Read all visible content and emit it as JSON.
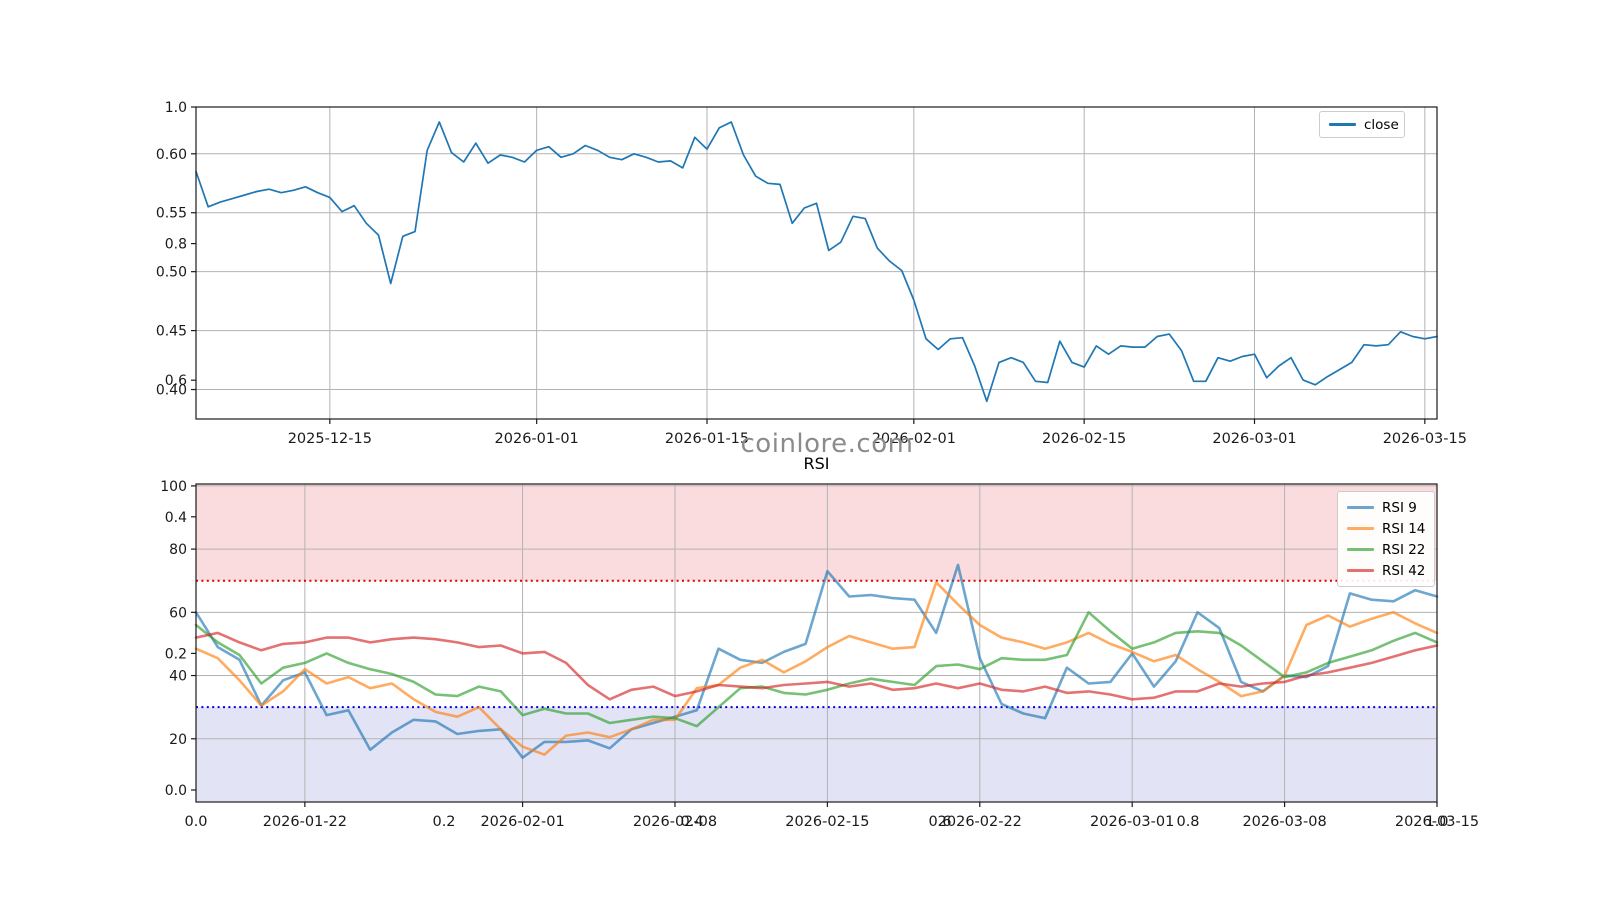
{
  "watermark": "coinlore.com",
  "colors": {
    "close_line": "#1f77b4",
    "rsi9": "#1f77b4",
    "rsi14": "#ff7f0e",
    "rsi22": "#2ca02c",
    "rsi42": "#d62728",
    "overbought_band": "#fbdcde",
    "oversold_band": "#e3e3f6",
    "overbought_dotted": "#dc0000",
    "oversold_dotted": "#0000dc",
    "grid": "#b3b3b3",
    "spine": "#1a1a1a"
  },
  "chart_data": [
    {
      "type": "line",
      "panel": "price",
      "title": "",
      "legend": [
        "close"
      ],
      "legend_position": "upper right",
      "grid": true,
      "x_start_date": "2025-12-04",
      "x_frequency": "daily",
      "x_tick_labels": [
        "2025-12-15",
        "2026-01-01",
        "2026-01-15",
        "2026-02-01",
        "2026-02-15",
        "2026-03-01",
        "2026-03-15"
      ],
      "x_tick_day_index": [
        11,
        28,
        42,
        59,
        73,
        87,
        101
      ],
      "y_tick_labels": [
        "0.40",
        "0.45",
        "0.50",
        "0.55",
        "0.60"
      ],
      "y_ticks": [
        0.4,
        0.45,
        0.5,
        0.55,
        0.6
      ],
      "ylim": [
        0.375,
        0.6397
      ],
      "secondary_y_tick_labels": [
        "1.0",
        "0.8",
        "0.6"
      ],
      "series": [
        {
          "name": "close",
          "color": "#1f77b4",
          "values": [
            0.585,
            0.555,
            0.559,
            0.562,
            0.565,
            0.568,
            0.57,
            0.567,
            0.569,
            0.572,
            0.567,
            0.563,
            0.551,
            0.556,
            0.541,
            0.531,
            0.49,
            0.53,
            0.534,
            0.603,
            0.627,
            0.601,
            0.593,
            0.609,
            0.592,
            0.599,
            0.597,
            0.593,
            0.603,
            0.606,
            0.597,
            0.6,
            0.607,
            0.603,
            0.597,
            0.595,
            0.6,
            0.597,
            0.593,
            0.594,
            0.588,
            0.614,
            0.604,
            0.622,
            0.627,
            0.599,
            0.581,
            0.575,
            0.574,
            0.541,
            0.554,
            0.558,
            0.518,
            0.525,
            0.547,
            0.545,
            0.52,
            0.509,
            0.501,
            0.476,
            0.443,
            0.434,
            0.443,
            0.444,
            0.42,
            0.39,
            0.423,
            0.427,
            0.423,
            0.407,
            0.406,
            0.441,
            0.423,
            0.419,
            0.437,
            0.43,
            0.437,
            0.436,
            0.436,
            0.445,
            0.447,
            0.433,
            0.407,
            0.407,
            0.427,
            0.424,
            0.428,
            0.43,
            0.41,
            0.42,
            0.427,
            0.408,
            0.404,
            0.411,
            0.417,
            0.423,
            0.438,
            0.437,
            0.438,
            0.449,
            0.445,
            0.443,
            0.445
          ]
        }
      ]
    },
    {
      "type": "line",
      "panel": "rsi",
      "title": "RSI",
      "legend": [
        "RSI 9",
        "RSI 14",
        "RSI 22",
        "RSI 42"
      ],
      "legend_position": "upper right",
      "grid": true,
      "x_start_date": "2026-01-17",
      "x_frequency": "daily",
      "x_tick_labels": [
        "2026-01-22",
        "2026-02-01",
        "2026-02-08",
        "2026-02-15",
        "2026-02-22",
        "2026-03-01",
        "2026-03-08",
        "2026-03-15"
      ],
      "x_tick_day_index": [
        5,
        15,
        22,
        29,
        36,
        43,
        50,
        57
      ],
      "y_tick_labels": [
        "20",
        "40",
        "60",
        "80",
        "100"
      ],
      "y_ticks": [
        20,
        40,
        60,
        80,
        100
      ],
      "ylim": [
        0,
        100.6
      ],
      "overbought_level": 70,
      "oversold_level": 30,
      "secondary_y_tick_labels": [
        "0.4",
        "0.2",
        "0.0"
      ],
      "secondary_x_tick_labels": [
        "0.0",
        "0.2",
        "0.4",
        "0.6",
        "0.8",
        "1.0"
      ],
      "series": [
        {
          "name": "RSI 9",
          "color": "#1f77b4",
          "values": [
            60,
            49,
            45,
            30.5,
            38.5,
            41,
            27.5,
            29,
            16.5,
            22,
            26,
            25.5,
            21.5,
            22.5,
            23,
            14,
            19,
            19,
            19.5,
            17,
            23,
            25,
            27,
            29,
            48.5,
            45,
            44,
            47.5,
            50,
            73,
            65,
            65.5,
            64.5,
            64,
            53.5,
            75,
            45.5,
            31,
            28,
            26.5,
            42.5,
            37.5,
            38,
            47,
            36.5,
            44.5,
            60,
            55,
            38,
            35,
            40,
            39.5,
            43,
            66,
            64,
            63.5,
            67,
            65
          ]
        },
        {
          "name": "RSI 14",
          "color": "#ff7f0e",
          "values": [
            48.5,
            45.5,
            38.5,
            30.5,
            35,
            42,
            37.5,
            39.5,
            36,
            37.5,
            32.5,
            28.5,
            27,
            30,
            23,
            17.5,
            15,
            21,
            22,
            20.5,
            23,
            26,
            26,
            36,
            37,
            42.5,
            45,
            41,
            44.5,
            49,
            52.5,
            50.5,
            48.5,
            49,
            69.5,
            62.5,
            56,
            52,
            50.5,
            48.5,
            50.5,
            53.5,
            50,
            47.5,
            44.5,
            46.5,
            42,
            38,
            33.5,
            35,
            40,
            56,
            59,
            55.5,
            58,
            60,
            56.5,
            53.5
          ]
        },
        {
          "name": "RSI 22",
          "color": "#2ca02c",
          "values": [
            56,
            50.5,
            46.5,
            37.5,
            42.5,
            44,
            47,
            44,
            42,
            40.5,
            38,
            34,
            33.5,
            36.5,
            35,
            27.5,
            29.5,
            28,
            28,
            25,
            26,
            27,
            26.5,
            24,
            30,
            36,
            36.5,
            34.5,
            34,
            35.5,
            37.5,
            39,
            38,
            37,
            43,
            43.5,
            42,
            45.5,
            45,
            45,
            46.5,
            60,
            54,
            48.5,
            50.5,
            53.5,
            54,
            53.5,
            49.5,
            44.5,
            39.5,
            41,
            44,
            46,
            48,
            51,
            53.5,
            50.5
          ]
        },
        {
          "name": "RSI 42",
          "color": "#d62728",
          "values": [
            52,
            53.5,
            50.5,
            48,
            50,
            50.5,
            52,
            52,
            50.5,
            51.5,
            52,
            51.5,
            50.5,
            49,
            49.5,
            47,
            47.5,
            44,
            37,
            32.5,
            35.5,
            36.5,
            33.5,
            35,
            37,
            36.5,
            36,
            37,
            37.5,
            38,
            36.5,
            37.5,
            35.5,
            36,
            37.5,
            36,
            37.5,
            35.5,
            35,
            36.5,
            34.5,
            35,
            34,
            32.5,
            33,
            35,
            35,
            37.5,
            36.5,
            37.5,
            38,
            40,
            41,
            42.5,
            44,
            46,
            48,
            49.5
          ]
        }
      ]
    }
  ]
}
